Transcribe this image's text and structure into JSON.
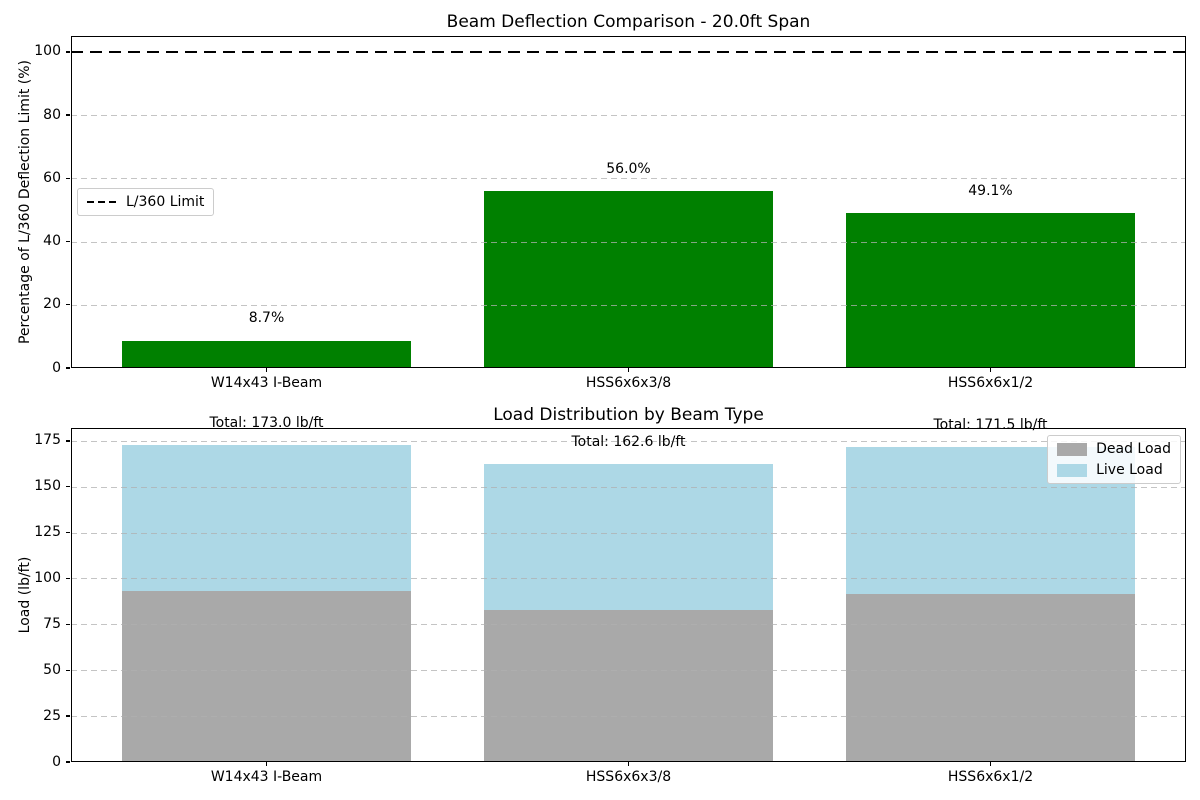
{
  "figure": {
    "background": "#ffffff"
  },
  "chart_data": [
    {
      "type": "bar",
      "title": "Beam Deflection Comparison - 20.0ft Span",
      "xlabel": "",
      "ylabel": "Percentage of L/360 Deflection Limit (%)",
      "categories": [
        "W14x43 I-Beam",
        "HSS6x6x3/8",
        "HSS6x6x1/2"
      ],
      "values": [
        8.7,
        56.0,
        49.1
      ],
      "value_labels": [
        "8.7%",
        "56.0%",
        "49.1%"
      ],
      "bar_color": "#008000",
      "ylim": [
        0,
        105
      ],
      "yticks": [
        0,
        20,
        40,
        60,
        80,
        100
      ],
      "grid": {
        "axis": "y",
        "style": "dashed",
        "color": "#b0b0b0",
        "over_bars": true
      },
      "reference_line": {
        "value": 100,
        "color": "#000000",
        "style": "dashed"
      },
      "legend": {
        "position": "center-left",
        "entries": [
          {
            "label": "L/360 Limit",
            "marker": "dashed-line",
            "color": "#000000"
          }
        ]
      }
    },
    {
      "type": "stacked-bar",
      "title": "Load Distribution by Beam Type",
      "xlabel": "",
      "ylabel": "Load (lb/ft)",
      "categories": [
        "W14x43 I-Beam",
        "HSS6x6x3/8",
        "HSS6x6x1/2"
      ],
      "series": [
        {
          "name": "Dead Load",
          "color": "#a9a9a9",
          "values": [
            93.0,
            82.6,
            91.5
          ]
        },
        {
          "name": "Live Load",
          "color": "#add8e6",
          "values": [
            80.0,
            80.0,
            80.0
          ]
        }
      ],
      "totals": [
        173.0,
        162.6,
        171.5
      ],
      "total_labels": [
        "Total: 173.0 lb/ft",
        "Total: 162.6 lb/ft",
        "Total: 171.5 lb/ft"
      ],
      "ylim": [
        0,
        182
      ],
      "yticks": [
        0,
        25,
        50,
        75,
        100,
        125,
        150,
        175
      ],
      "grid": {
        "axis": "y",
        "style": "dashed",
        "color": "#b0b0b0",
        "over_bars": true
      },
      "legend": {
        "position": "top-right",
        "entries": [
          {
            "label": "Dead Load",
            "marker": "swatch",
            "color": "#a9a9a9"
          },
          {
            "label": "Live Load",
            "marker": "swatch",
            "color": "#add8e6"
          }
        ]
      }
    }
  ]
}
